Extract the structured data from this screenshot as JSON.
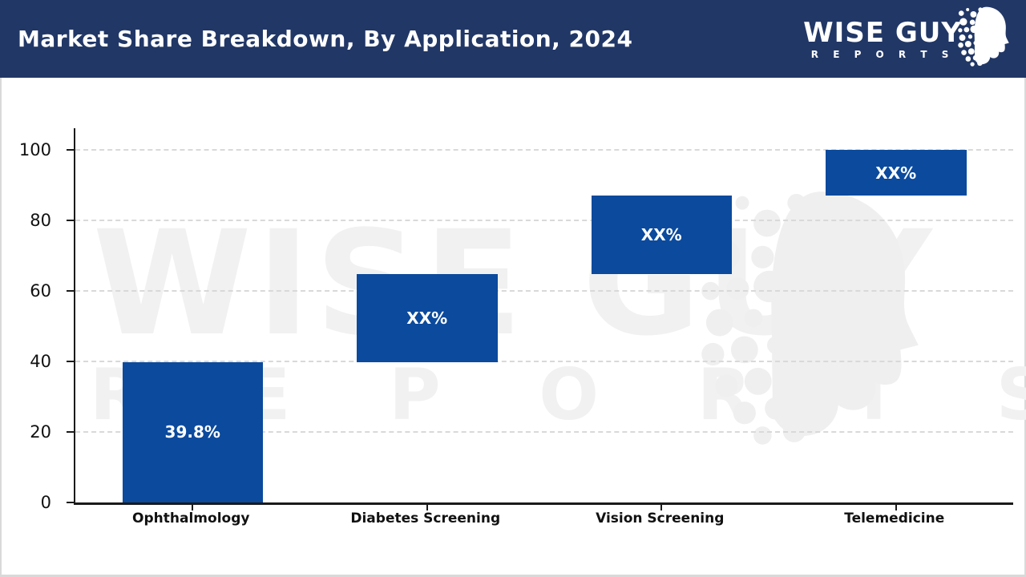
{
  "header": {
    "title": "Market Share Breakdown, By Application, 2024",
    "logo": {
      "wordmark": "WISE GUY",
      "sub_wordmark": "R E P O R T S"
    }
  },
  "watermark": {
    "wordmark": "WISE GUY",
    "sub_wordmark": "R E P O R T S"
  },
  "chart_data": {
    "type": "bar",
    "variant": "waterfall",
    "title": "Market Share Breakdown, By Application, 2024",
    "categories": [
      "Ophthalmology",
      "Diabetes Screening",
      "Vision Screening",
      "Telemedicine"
    ],
    "series": [
      {
        "name": "Market share (%)",
        "segments": [
          {
            "category": "Ophthalmology",
            "start": 0,
            "end": 39.8,
            "label": "39.8%"
          },
          {
            "category": "Diabetes Screening",
            "start": 39.8,
            "end": 64.8,
            "label": "XX%"
          },
          {
            "category": "Vision Screening",
            "start": 64.8,
            "end": 87.0,
            "label": "XX%"
          },
          {
            "category": "Telemedicine",
            "start": 87.0,
            "end": 100,
            "label": "XX%"
          }
        ]
      }
    ],
    "xlabel": "",
    "ylabel": "",
    "ylim": [
      0,
      100
    ],
    "yticks": [
      0,
      20,
      40,
      60,
      80,
      100
    ],
    "grid": "horizontal-dashed",
    "legend": "none",
    "bar_color": "#0b4a9d",
    "bar_label_color": "#ffffff"
  },
  "colors": {
    "header_bg": "#213766",
    "header_text": "#ffffff",
    "axis": "#1a1a1a",
    "gridline": "#d9d9d9",
    "watermark": "#f1f1f1",
    "page_border": "#d9d9d9"
  }
}
